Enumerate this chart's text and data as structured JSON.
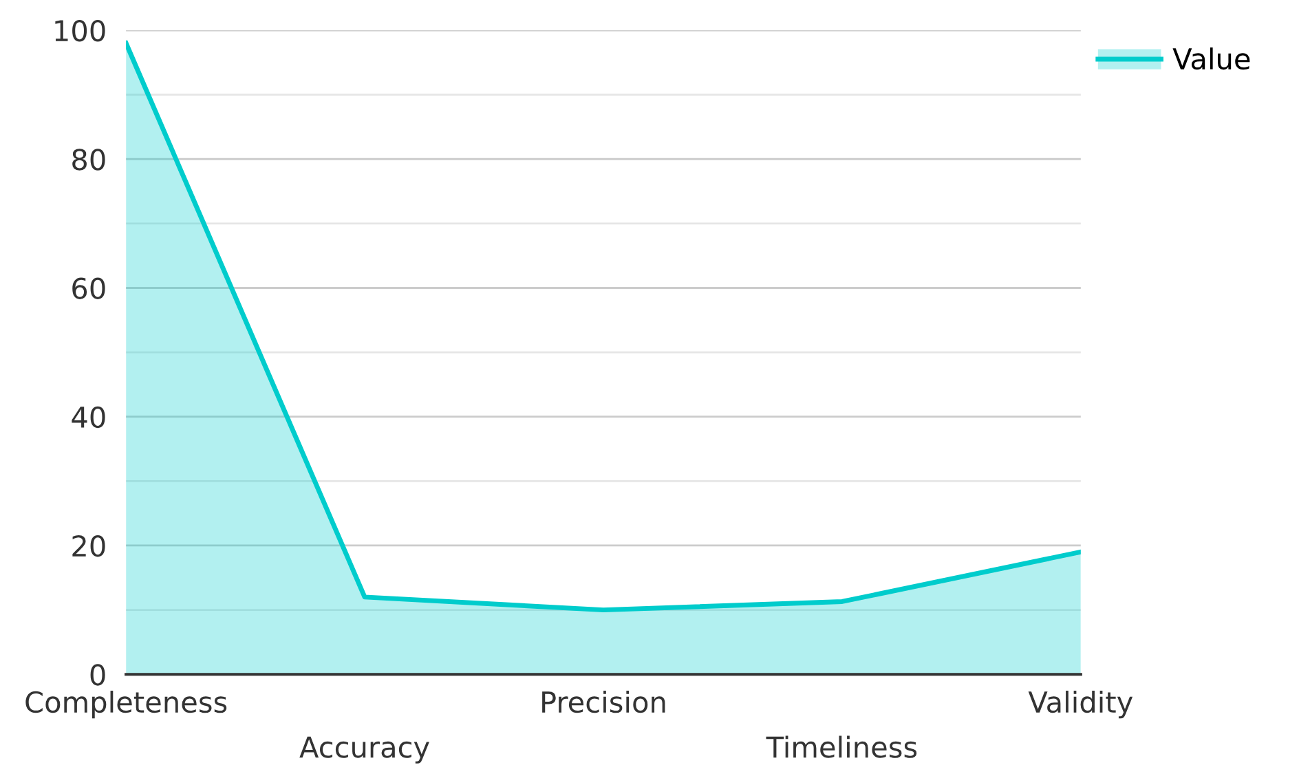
{
  "chart_data": {
    "type": "area",
    "categories": [
      "Completeness",
      "Accuracy",
      "Precision",
      "Timeliness",
      "Validity"
    ],
    "series": [
      {
        "name": "Value",
        "color": "#00cccc",
        "values": [
          98,
          12,
          10,
          11.3,
          19
        ]
      }
    ],
    "ylim": [
      0,
      100
    ],
    "yticks": [
      0,
      {
        "value": 10,
        "label": null
      },
      20,
      {
        "value": 30,
        "label": null
      },
      40,
      {
        "value": 50,
        "label": null
      },
      60,
      {
        "value": 70,
        "label": null
      },
      80,
      {
        "value": 90,
        "label": null
      },
      100
    ],
    "grid": "y",
    "legend": "top right"
  }
}
